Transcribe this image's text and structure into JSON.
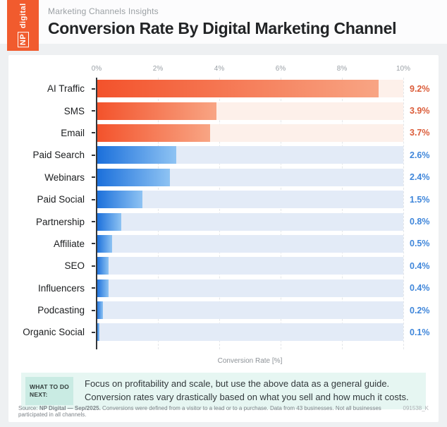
{
  "header": {
    "logo_np": "NP",
    "logo_brand": "digital",
    "eyebrow": "Marketing Channels Insights",
    "title": "Conversion Rate By Digital Marketing Channel"
  },
  "chart_data": {
    "type": "bar",
    "orientation": "horizontal",
    "title": "Conversion Rate By Digital Marketing Channel",
    "xlabel": "Conversion Rate [%]",
    "ylabel": "",
    "xlim": [
      0,
      10
    ],
    "x_ticks": [
      "0%",
      "2%",
      "4%",
      "6%",
      "8%",
      "10%"
    ],
    "grid": "vertical-dashed",
    "categories": [
      "AI Traffic",
      "SMS",
      "Email",
      "Paid Search",
      "Webinars",
      "Paid Social",
      "Partnership",
      "Affiliate",
      "SEO",
      "Influencers",
      "Podcasting",
      "Organic Social"
    ],
    "values": [
      9.2,
      3.9,
      3.7,
      2.6,
      2.4,
      1.5,
      0.8,
      0.5,
      0.4,
      0.4,
      0.2,
      0.1
    ],
    "rows": [
      {
        "label": "AI Traffic",
        "value": 9.2,
        "display": "9.2%",
        "group": "orange"
      },
      {
        "label": "SMS",
        "value": 3.9,
        "display": "3.9%",
        "group": "orange"
      },
      {
        "label": "Email",
        "value": 3.7,
        "display": "3.7%",
        "group": "orange"
      },
      {
        "label": "Paid Search",
        "value": 2.6,
        "display": "2.6%",
        "group": "blue"
      },
      {
        "label": "Webinars",
        "value": 2.4,
        "display": "2.4%",
        "group": "blue"
      },
      {
        "label": "Paid Social",
        "value": 1.5,
        "display": "1.5%",
        "group": "blue"
      },
      {
        "label": "Partnership",
        "value": 0.8,
        "display": "0.8%",
        "group": "blue"
      },
      {
        "label": "Affiliate",
        "value": 0.5,
        "display": "0.5%",
        "group": "blue"
      },
      {
        "label": "SEO",
        "value": 0.4,
        "display": "0.4%",
        "group": "blue"
      },
      {
        "label": "Influencers",
        "value": 0.4,
        "display": "0.4%",
        "group": "blue"
      },
      {
        "label": "Podcasting",
        "value": 0.2,
        "display": "0.2%",
        "group": "blue"
      },
      {
        "label": "Organic Social",
        "value": 0.1,
        "display": "0.1%",
        "group": "blue"
      }
    ],
    "colors": {
      "orange": {
        "fill_start": "#f3522b",
        "fill_end": "#f8a584",
        "track": "#fdf0ea",
        "value_text": "#db5c39"
      },
      "blue": {
        "fill_start": "#1a6fdb",
        "fill_end": "#8ec3f3",
        "track": "#e3ebf7",
        "value_text": "#3f86da"
      },
      "brand_orange": "#f15b2e",
      "axis_line": "#33363a"
    }
  },
  "callout": {
    "label": "WHAT TO DO NEXT:",
    "text": "Focus on profitability and scale, but use the above data as a general guide. Conversion rates vary drastically based on what you sell and how much it costs."
  },
  "footer": {
    "source_prefix": "Source:",
    "source_bold": "NP Digital — Sep/2025.",
    "source_rest": "Conversions were defined from a visitor to a lead or to a purchase. Data from 43 businesses. Not all businesses participated in all channels.",
    "code": "091538_K"
  }
}
